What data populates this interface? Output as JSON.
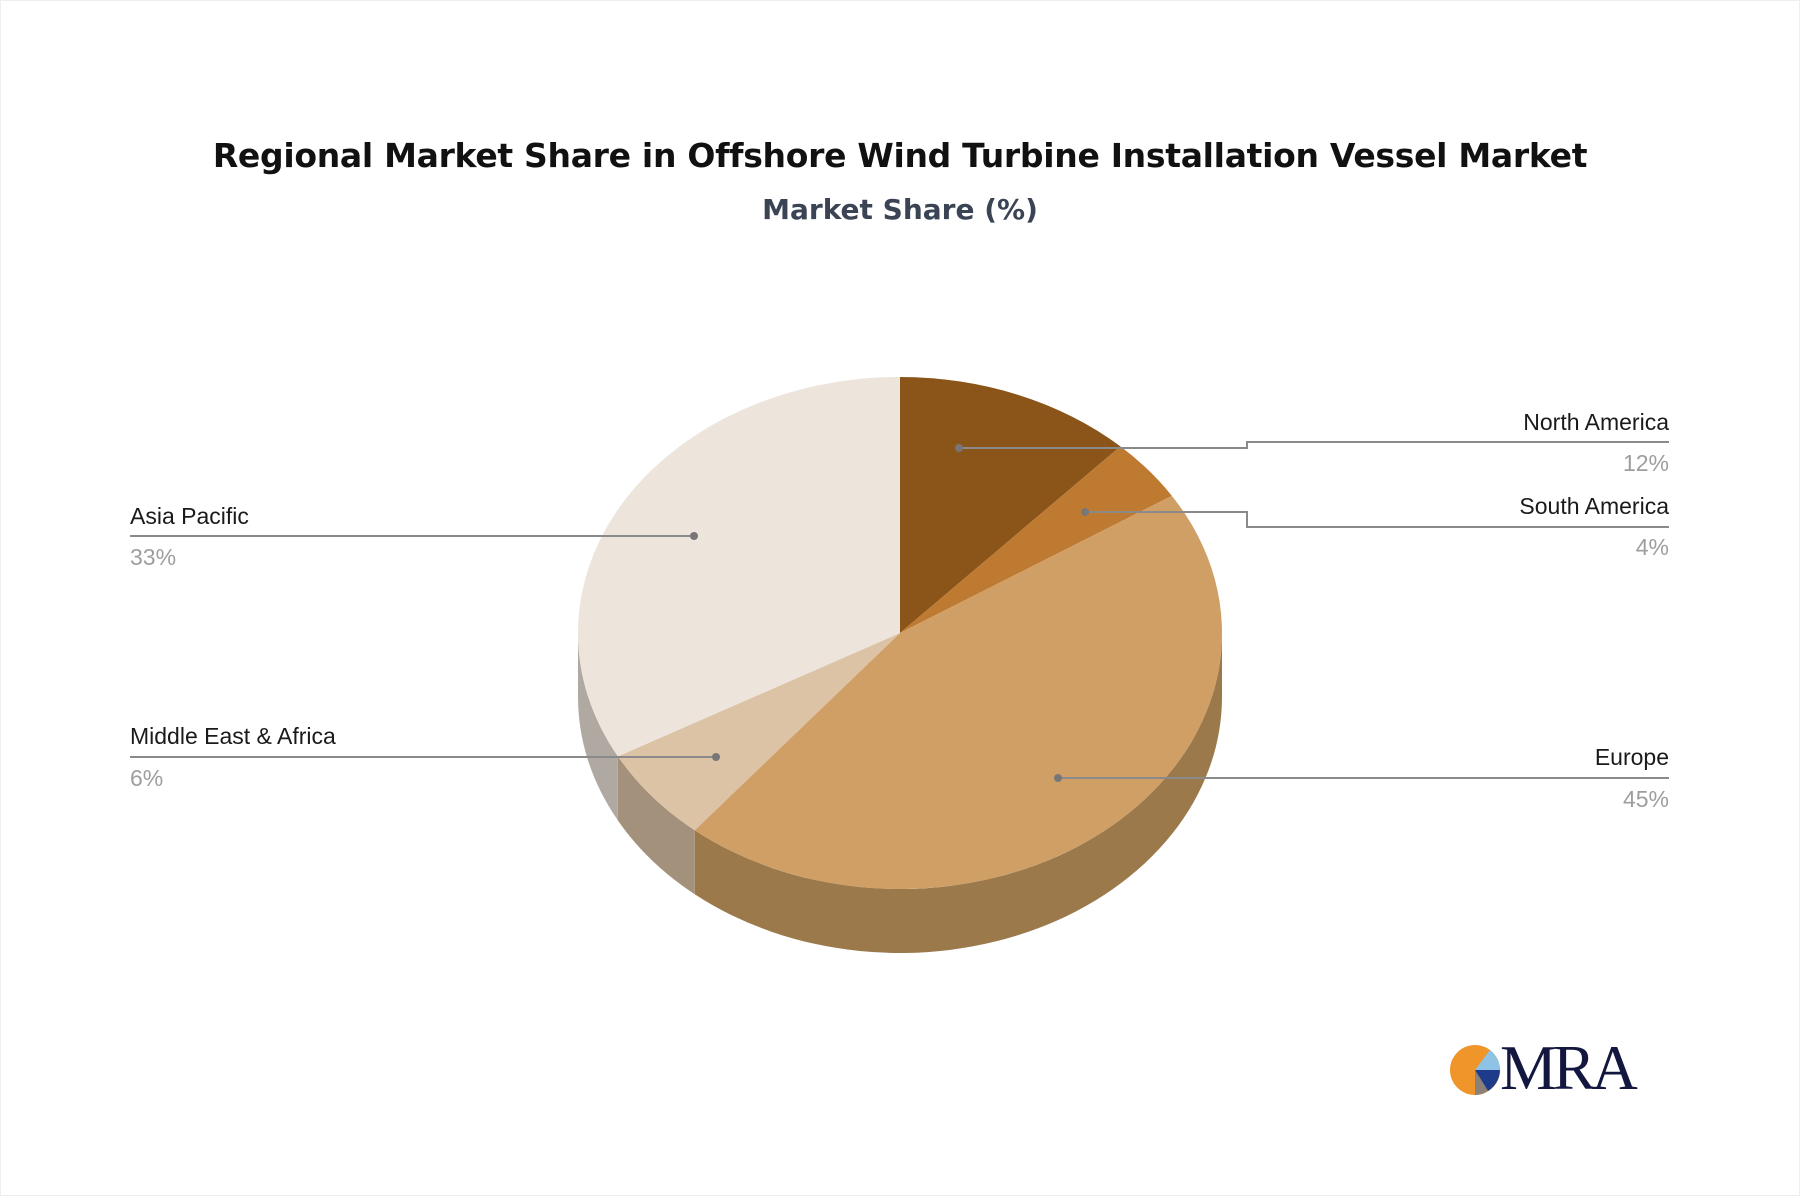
{
  "header": {
    "title": "Regional Market Share in Offshore Wind Turbine Installation Vessel Market",
    "subtitle": "Market Share (%)"
  },
  "chart_data": {
    "type": "pie",
    "style": "3d",
    "title": "Regional Market Share in Offshore Wind Turbine Installation Vessel Market",
    "subtitle": "Market Share (%)",
    "unit": "%",
    "start_angle": "12 o'clock, clockwise",
    "categories": [
      "North America",
      "South America",
      "Europe",
      "Middle East & Africa",
      "Asia Pacific"
    ],
    "values": [
      12,
      4,
      45,
      6,
      33
    ],
    "labels": [
      "12%",
      "4%",
      "45%",
      "6%",
      "33%"
    ],
    "colors": [
      "#8b5519",
      "#bf7a31",
      "#d09f66",
      "#dcc3a6",
      "#ede4dc"
    ],
    "side_colors": [
      "#6a4113",
      "#8f5c25",
      "#9b794b",
      "#a4917b",
      "#b0a9a2"
    ],
    "legend": "none (callout labels)"
  },
  "labels": {
    "north_america": {
      "name": "North America",
      "value": "12%"
    },
    "south_america": {
      "name": "South America",
      "value": "4%"
    },
    "europe": {
      "name": "Europe",
      "value": "45%"
    },
    "middle_east_africa": {
      "name": "Middle East & Africa",
      "value": "6%"
    },
    "asia_pacific": {
      "name": "Asia Pacific",
      "value": "33%"
    }
  },
  "logo": {
    "text": "MRA",
    "colors": {
      "orange": "#f0952a",
      "light_blue": "#8ec3e6",
      "navy": "#1d3b8a",
      "gray": "#8a8178",
      "text": "#13163f"
    }
  }
}
